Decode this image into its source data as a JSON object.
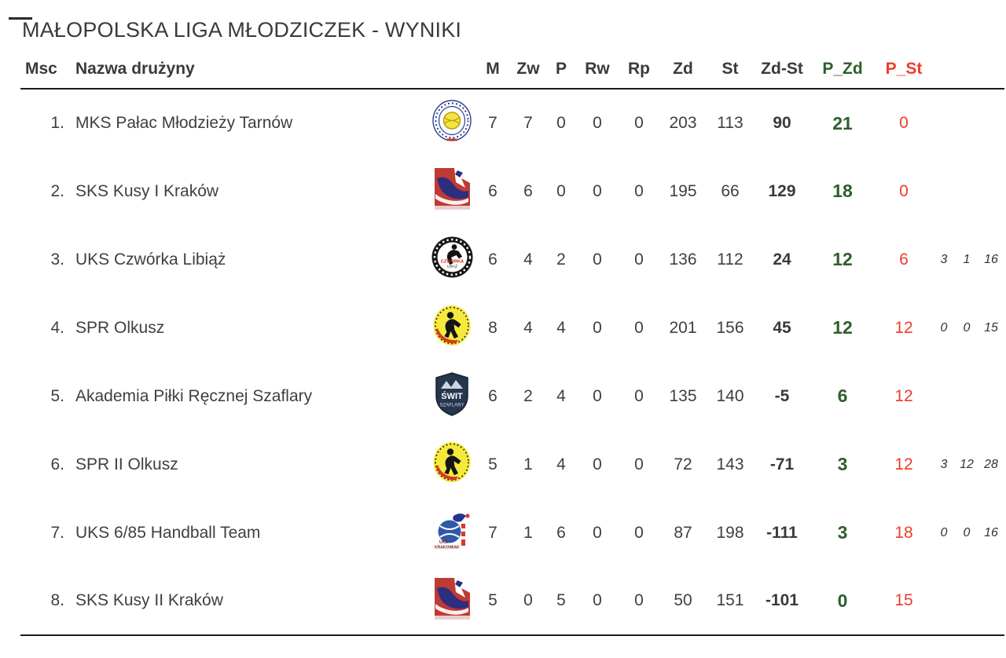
{
  "title": "MAŁOPOLSKA LIGA MŁODZICZEK - WYNIKI",
  "colors": {
    "points_won_green": "#2e5e2b",
    "points_lost_red": "#ef3b2d",
    "text": "#3a3a3a"
  },
  "table": {
    "headers": {
      "msc": "Msc",
      "name": "Nazwa drużyny",
      "m": "M",
      "zw": "Zw",
      "p": "P",
      "rw": "Rw",
      "rp": "Rp",
      "zd": "Zd",
      "st": "St",
      "zd_st": "Zd-St",
      "p_zd": "P_Zd",
      "p_st": "P_St"
    },
    "rows": [
      {
        "msc": "1.",
        "name": "MKS Pałac Młodzieży Tarnów",
        "logo": "mks-palac-tarnow-logo",
        "m": 7,
        "zw": 7,
        "p": 0,
        "rw": 0,
        "rp": 0,
        "zd": 203,
        "st": 113,
        "zd_st": 90,
        "p_zd": 21,
        "p_st": 0,
        "extra": []
      },
      {
        "msc": "2.",
        "name": "SKS Kusy I Kraków",
        "logo": "sks-kusy-logo",
        "m": 6,
        "zw": 6,
        "p": 0,
        "rw": 0,
        "rp": 0,
        "zd": 195,
        "st": 66,
        "zd_st": 129,
        "p_zd": 18,
        "p_st": 0,
        "extra": []
      },
      {
        "msc": "3.",
        "name": "UKS Czwórka Libiąż",
        "logo": "uks-czworka-libiaz-logo",
        "m": 6,
        "zw": 4,
        "p": 2,
        "rw": 0,
        "rp": 0,
        "zd": 136,
        "st": 112,
        "zd_st": 24,
        "p_zd": 12,
        "p_st": 6,
        "extra": [
          3,
          1,
          16
        ]
      },
      {
        "msc": "4.",
        "name": "SPR Olkusz",
        "logo": "spr-olkusz-logo",
        "m": 8,
        "zw": 4,
        "p": 4,
        "rw": 0,
        "rp": 0,
        "zd": 201,
        "st": 156,
        "zd_st": 45,
        "p_zd": 12,
        "p_st": 12,
        "extra": [
          0,
          0,
          15
        ]
      },
      {
        "msc": "5.",
        "name": "Akademia Piłki Ręcznej Szaflary",
        "logo": "swit-szaflary-logo",
        "m": 6,
        "zw": 2,
        "p": 4,
        "rw": 0,
        "rp": 0,
        "zd": 135,
        "st": 140,
        "zd_st": -5,
        "p_zd": 6,
        "p_st": 12,
        "extra": []
      },
      {
        "msc": "6.",
        "name": "SPR II Olkusz",
        "logo": "spr-olkusz-logo",
        "m": 5,
        "zw": 1,
        "p": 4,
        "rw": 0,
        "rp": 0,
        "zd": 72,
        "st": 143,
        "zd_st": -71,
        "p_zd": 3,
        "p_st": 12,
        "extra": [
          3,
          12,
          28
        ]
      },
      {
        "msc": "7.",
        "name": "UKS 6/85 Handball Team",
        "logo": "uks-685-krakowiak-logo",
        "m": 7,
        "zw": 1,
        "p": 6,
        "rw": 0,
        "rp": 0,
        "zd": 87,
        "st": 198,
        "zd_st": -111,
        "p_zd": 3,
        "p_st": 18,
        "extra": [
          0,
          0,
          16
        ]
      },
      {
        "msc": "8.",
        "name": "SKS Kusy II Kraków",
        "logo": "sks-kusy-logo",
        "m": 5,
        "zw": 0,
        "p": 5,
        "rw": 0,
        "rp": 0,
        "zd": 50,
        "st": 151,
        "zd_st": -101,
        "p_zd": 0,
        "p_st": 15,
        "extra": []
      }
    ]
  }
}
